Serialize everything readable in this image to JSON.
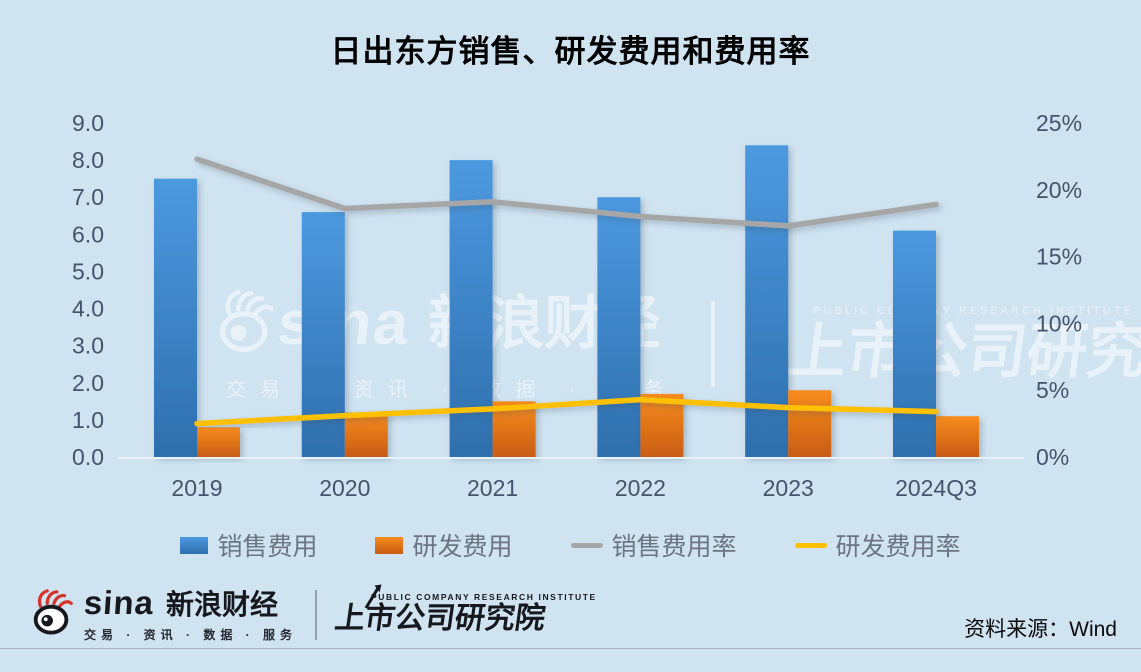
{
  "chart_data": {
    "type": "combo-bar-line",
    "title": "日出东方销售、研发费用和费用率",
    "categories": [
      "2019",
      "2020",
      "2021",
      "2022",
      "2023",
      "2024Q3"
    ],
    "series": [
      {
        "key": "sales-expense",
        "name": "销售费用",
        "type": "bar",
        "axis": "left",
        "color_top": "#4D99E0",
        "color_bottom": "#2E6FAD",
        "values": [
          7.5,
          6.6,
          8.0,
          7.0,
          8.4,
          6.1
        ]
      },
      {
        "key": "rd-expense",
        "name": "研发费用",
        "type": "bar",
        "axis": "left",
        "color_top": "#F78C1E",
        "color_bottom": "#C85C12",
        "values": [
          0.8,
          1.2,
          1.5,
          1.7,
          1.8,
          1.1
        ]
      },
      {
        "key": "sales-expense-ratio",
        "name": "销售费用率",
        "type": "line",
        "axis": "right",
        "color": "#A6A6A6",
        "unit": "%",
        "values": [
          22.3,
          18.6,
          19.1,
          18.0,
          17.3,
          18.9
        ]
      },
      {
        "key": "rd-expense-ratio",
        "name": "研发费用率",
        "type": "line",
        "axis": "right",
        "color": "#FFC000",
        "unit": "%",
        "values": [
          2.5,
          3.1,
          3.6,
          4.3,
          3.7,
          3.4
        ]
      }
    ],
    "left_axis": {
      "min": 0,
      "max": 9,
      "step": 1,
      "tick_labels": [
        "0.0",
        "1.0",
        "2.0",
        "3.0",
        "4.0",
        "5.0",
        "6.0",
        "7.0",
        "8.0",
        "9.0"
      ]
    },
    "right_axis": {
      "min": 0,
      "max": 25,
      "step": 5,
      "tick_labels": [
        "0%",
        "5%",
        "10%",
        "15%",
        "20%",
        "25%"
      ]
    },
    "grid": false,
    "legend_position": "bottom",
    "axis_label_color": "#44546A",
    "background_color": "#cfe3f1"
  },
  "watermark": {
    "sina_wordmark": "sina",
    "sina_brand": "新浪财经",
    "sina_tagline": "交易 · 资讯 · 数据 · 服务",
    "institute_en": "PUBLIC COMPANY RESEARCH INSTITUTE",
    "institute": "上市公司研究院"
  },
  "footer": {
    "sina_wordmark": "sina",
    "sina_brand": "新浪财经",
    "sina_tagline": "交易 · 资讯 · 数据 · 服务",
    "institute_en": "PUBLIC COMPANY RESEARCH INSTITUTE",
    "institute": "上市公司研究院",
    "source": "资料来源：Wind"
  }
}
